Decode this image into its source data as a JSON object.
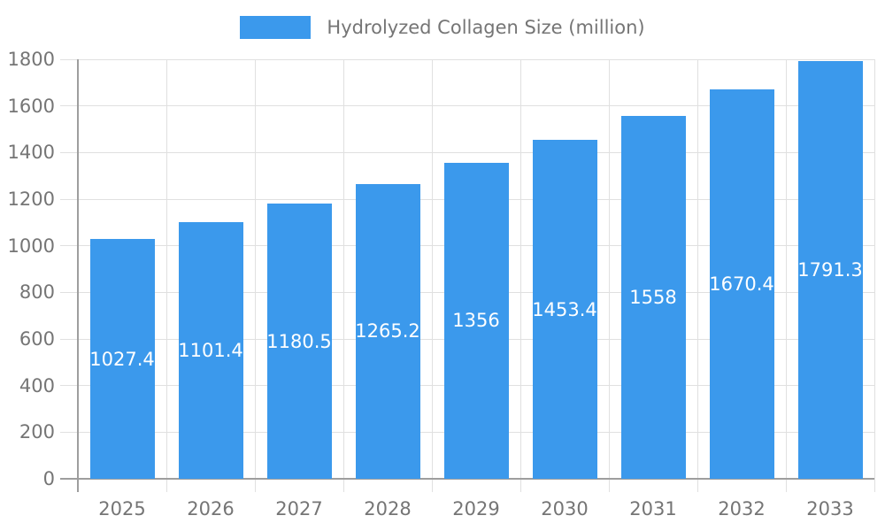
{
  "colors": {
    "bar": "#3B99EC",
    "grid": "#e0e0e0",
    "axis": "#9e9e9e",
    "text": "#757575",
    "value_label": "#ffffff",
    "background": "#ffffff"
  },
  "chart_data": {
    "type": "bar",
    "title": "Hydrolyzed Collagen Size (million)",
    "categories": [
      "2025",
      "2026",
      "2027",
      "2028",
      "2029",
      "2030",
      "2031",
      "2032",
      "2033"
    ],
    "series": [
      {
        "name": "Hydrolyzed Collagen Size (million)",
        "values": [
          1027.4,
          1101.4,
          1180.5,
          1265.2,
          1356,
          1453.4,
          1558,
          1670.4,
          1791.3
        ]
      }
    ],
    "xlabel": "",
    "ylabel": "",
    "ylim": [
      0,
      1800
    ],
    "ytick_step": 200,
    "yticks": [
      0,
      200,
      400,
      600,
      800,
      1000,
      1200,
      1400,
      1600,
      1800
    ],
    "grid": true,
    "legend_position": "top-center",
    "value_labels": "inside-center"
  }
}
